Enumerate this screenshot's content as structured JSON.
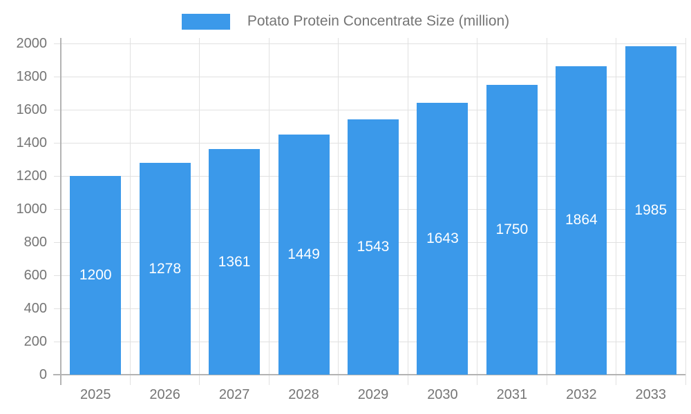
{
  "chart_data": {
    "type": "bar",
    "title": "Potato Protein Concentrate Size (million)",
    "categories": [
      "2025",
      "2026",
      "2027",
      "2028",
      "2029",
      "2030",
      "2031",
      "2032",
      "2033"
    ],
    "values": [
      1200,
      1278,
      1361,
      1449,
      1543,
      1643,
      1750,
      1864,
      1985
    ],
    "xlabel": "",
    "ylabel": "",
    "ylim": [
      0,
      2000
    ],
    "ytick_step": 200,
    "ytick_labels": [
      "0",
      "200",
      "400",
      "600",
      "800",
      "1000",
      "1200",
      "1400",
      "1600",
      "1800",
      "2000"
    ],
    "grid": true,
    "bar_labels_inside": true,
    "legend_position": "top-center",
    "colors": {
      "bar": "#3b99ea",
      "bar_label": "#ffffff",
      "axis_text": "#757575",
      "grid": "#e1e1e1",
      "axis_line": "#b3b3b3",
      "background": "#ffffff"
    }
  }
}
